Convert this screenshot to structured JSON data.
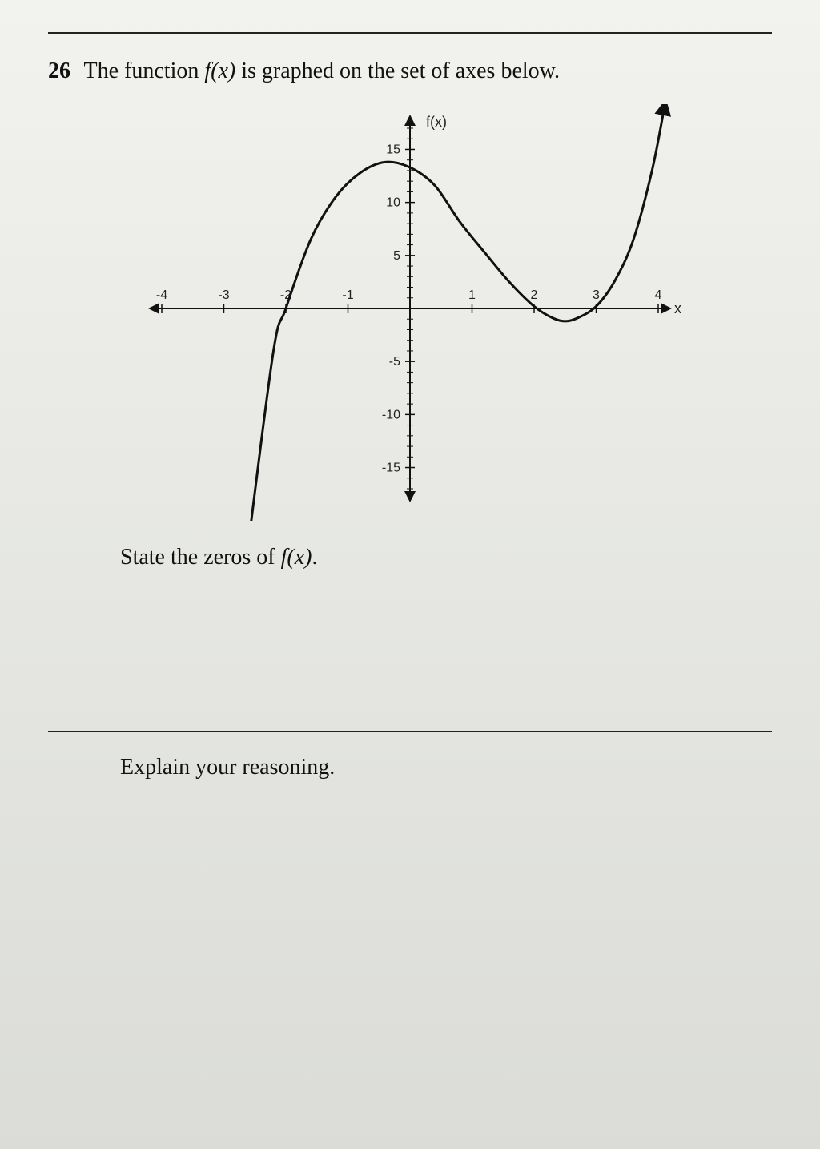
{
  "question": {
    "number": "26",
    "prompt_before_fn": "The function ",
    "fn": "f(x)",
    "prompt_after_fn": " is graphed on the set of axes below."
  },
  "zeros_line_before_fn": "State the zeros of ",
  "zeros_fn": "f(x)",
  "zeros_line_after_fn": ".",
  "explain_line": "Explain your reasoning.",
  "chart": {
    "type": "line",
    "y_axis_label": "f(x)",
    "x_axis_label": "x",
    "xlim": [
      -4,
      4
    ],
    "ylim": [
      -17,
      17
    ],
    "x_ticks": [
      -4,
      -3,
      -2,
      -1,
      1,
      2,
      3,
      4
    ],
    "y_ticks": [
      15,
      10,
      5,
      -5,
      -10,
      -15
    ],
    "x_tick_labels": [
      "-4",
      "-3",
      "-2",
      "-1",
      "1",
      "2",
      "3",
      "4"
    ],
    "y_tick_labels": [
      "15",
      "10",
      "5",
      "-5",
      "-10",
      "-15"
    ],
    "axis_color": "#111111",
    "curve_color": "#111111",
    "curve_width": 3,
    "tick_len": 6,
    "minor_tick_len": 4,
    "background_color": "transparent",
    "curve_points": [
      [
        -2.6,
        -22
      ],
      [
        -2.2,
        -4
      ],
      [
        -2.0,
        0
      ],
      [
        -1.6,
        6.5
      ],
      [
        -1.2,
        10.5
      ],
      [
        -0.8,
        12.8
      ],
      [
        -0.4,
        13.8
      ],
      [
        0.0,
        13.3
      ],
      [
        0.4,
        11.6
      ],
      [
        0.8,
        8.2
      ],
      [
        1.2,
        5.3
      ],
      [
        1.6,
        2.5
      ],
      [
        2.0,
        0.2
      ],
      [
        2.3,
        -0.9
      ],
      [
        2.5,
        -1.2
      ],
      [
        2.7,
        -0.9
      ],
      [
        3.0,
        0.2
      ],
      [
        3.3,
        2.6
      ],
      [
        3.6,
        6.5
      ],
      [
        3.9,
        13.0
      ],
      [
        4.1,
        19.0
      ]
    ],
    "start_arrow": true,
    "end_arrow": true,
    "axis_arrows": true
  }
}
